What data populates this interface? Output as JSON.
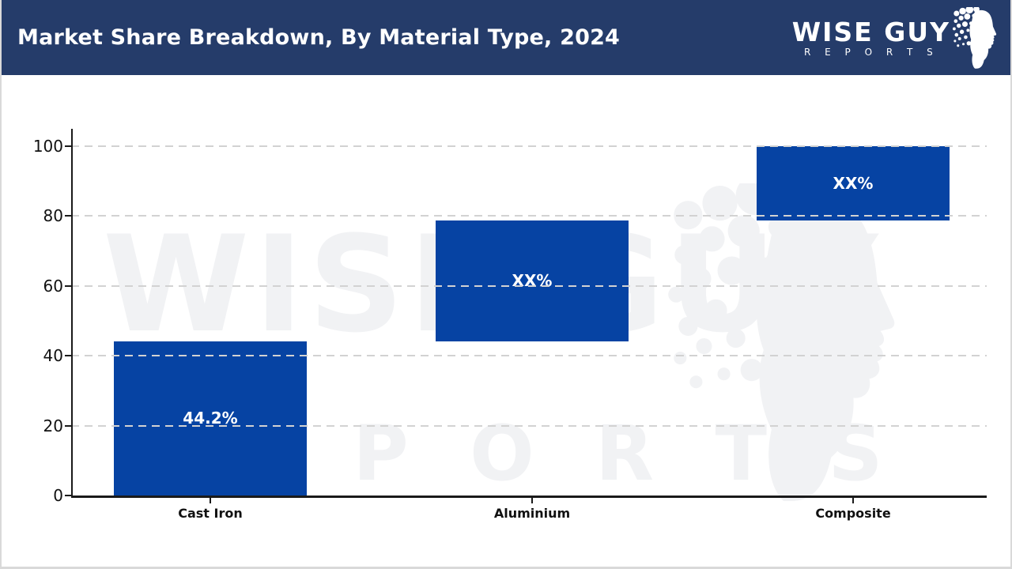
{
  "header": {
    "title": "Market Share Breakdown, By Material Type, 2024",
    "logo": {
      "line1": "WISE GUY",
      "line2": "R E P O R T S"
    }
  },
  "watermark": {
    "line1": "WISE GUY",
    "line2": "R E P O R T S"
  },
  "colors": {
    "header_bg": "#253c6a",
    "bar": "#0643a3",
    "bar_label_text": "#ffffff",
    "watermark": "#f1f2f4",
    "gridline": "#d2d2d2",
    "axis": "#1a1a1a",
    "page_border": "#d9d9d9"
  },
  "chart_data": {
    "type": "bar",
    "subtype": "waterfall",
    "title": "Market Share Breakdown, By Material Type, 2024",
    "xlabel": "",
    "ylabel": "",
    "categories": [
      "Cast Iron",
      "Aluminium",
      "Composite"
    ],
    "segments": [
      {
        "category": "Cast Iron",
        "start": 0,
        "end": 44.2,
        "value": 44.2,
        "label": "44.2%"
      },
      {
        "category": "Aluminium",
        "start": 44.2,
        "end": 78.7,
        "value": 34.5,
        "label": "XX%"
      },
      {
        "category": "Composite",
        "start": 78.7,
        "end": 100,
        "value": 21.3,
        "label": "XX%"
      }
    ],
    "values_displayed": [
      "44.2%",
      "XX%",
      "XX%"
    ],
    "yticks": [
      0,
      20,
      40,
      60,
      80,
      100
    ],
    "ylim": [
      0,
      105
    ],
    "grid": "horizontal dashed, drawn over bars",
    "legend": "none"
  }
}
